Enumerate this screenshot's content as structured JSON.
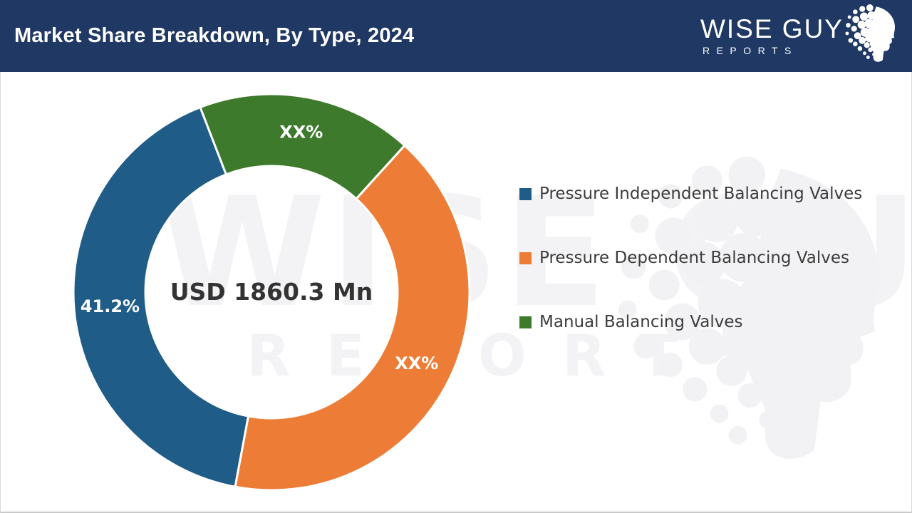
{
  "header": {
    "title": "Market Share Breakdown, By Type, 2024",
    "brand_line1": "WISE GUY",
    "brand_line2": "REPORTS"
  },
  "watermark": {
    "line1": "WISE GUY",
    "line2": "REPORTS"
  },
  "chart_data": {
    "type": "donut",
    "title": "Market Share Breakdown, By Type, 2024",
    "center_label": "USD 1860.3 Mn",
    "legend_position": "right",
    "start_angle_deg": -21.1,
    "draw_order": [
      "manual",
      "dependent",
      "independent"
    ],
    "segments": [
      {
        "id": "independent",
        "label": "Pressure Independent Balancing Valves",
        "value_pct": 41.2,
        "display_label": "41.2%",
        "color": "#1f5c88"
      },
      {
        "id": "dependent",
        "label": "Pressure Dependent Balancing Valves",
        "value_pct": 41.2,
        "display_label": "XX%",
        "color": "#ed7d36"
      },
      {
        "id": "manual",
        "label": "Manual Balancing Valves",
        "value_pct": 17.6,
        "display_label": "XX%",
        "color": "#3e7a2c"
      }
    ],
    "colors": {
      "header_bg": "#1f3864",
      "center_text": "#333333",
      "watermark": "#f3f3f5"
    }
  }
}
